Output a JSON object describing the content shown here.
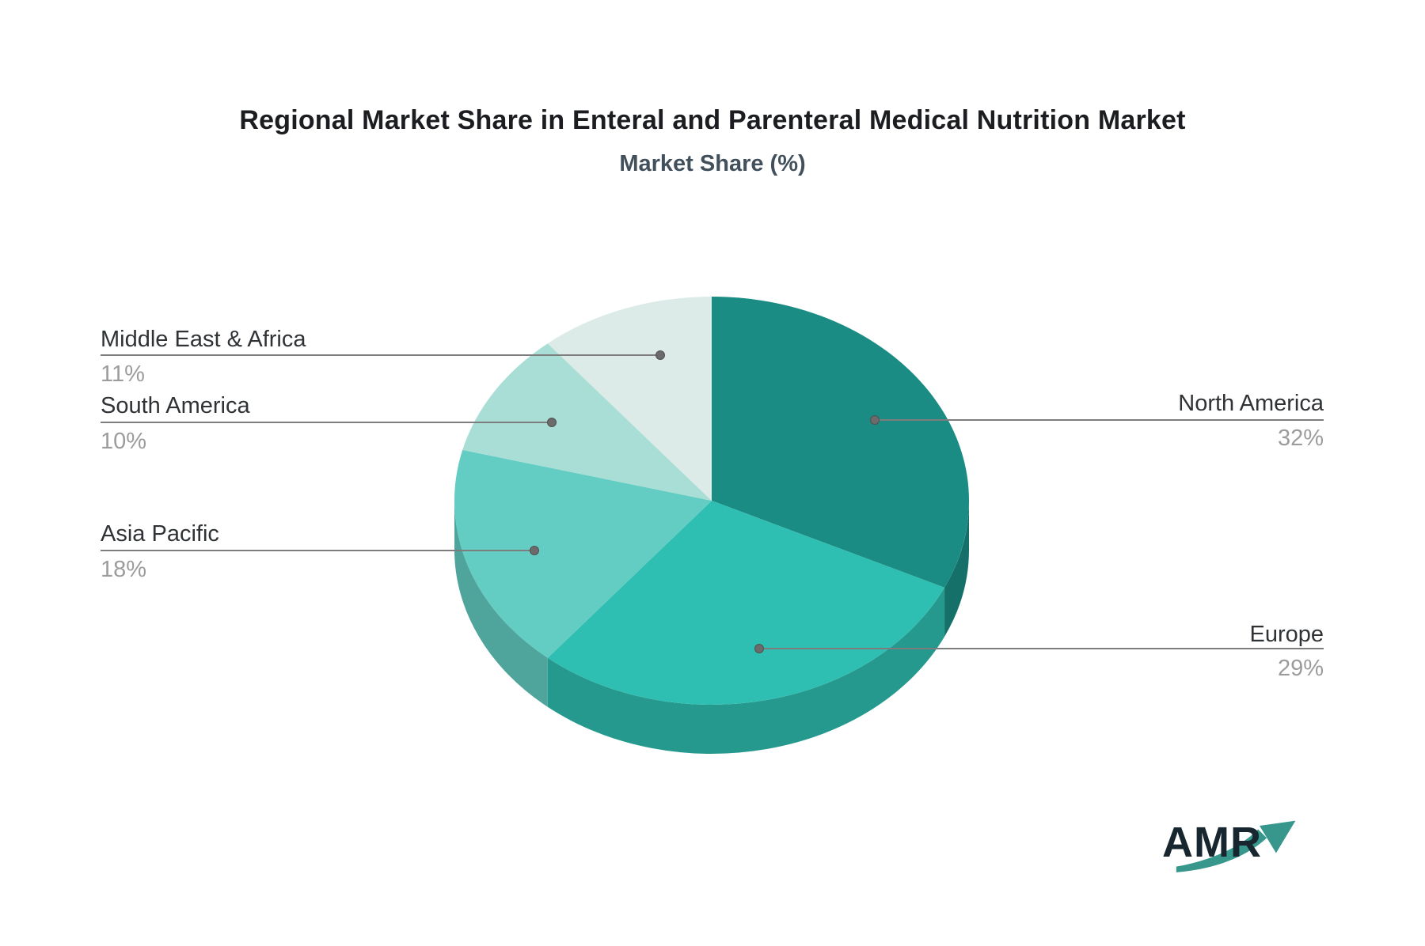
{
  "header": {
    "title": "Regional Market Share in Enteral and Parenteral Medical Nutrition Market",
    "subtitle": "Market Share (%)"
  },
  "chart_data": {
    "type": "pie",
    "style": "3d",
    "title": "Regional Market Share in Enteral and Parenteral Medical Nutrition Market",
    "subtitle": "Market Share (%)",
    "unit": "%",
    "start_angle_deg": 0,
    "direction": "clockwise",
    "legend_position": "callout-labels",
    "categories": [
      "North America",
      "Europe",
      "Asia Pacific",
      "South America",
      "Middle East & Africa"
    ],
    "values": [
      32,
      29,
      18,
      10,
      11
    ],
    "slice_colors": [
      "#1a8c84",
      "#2fbfb2",
      "#63cdc3",
      "#a9ded6",
      "#dcebe7"
    ],
    "leader_line_color": "#7d7d7d",
    "dot_color": "#6b6b6b"
  },
  "regions": [
    {
      "label": "North America",
      "value_text": "32%"
    },
    {
      "label": "Europe",
      "value_text": "29%"
    },
    {
      "label": "Asia Pacific",
      "value_text": "18%"
    },
    {
      "label": "South America",
      "value_text": "10%"
    },
    {
      "label": "Middle East & Africa",
      "value_text": "11%"
    }
  ],
  "logo": {
    "text": "AMR",
    "text_color": "#17262f",
    "arrow_color": "#37978d"
  }
}
